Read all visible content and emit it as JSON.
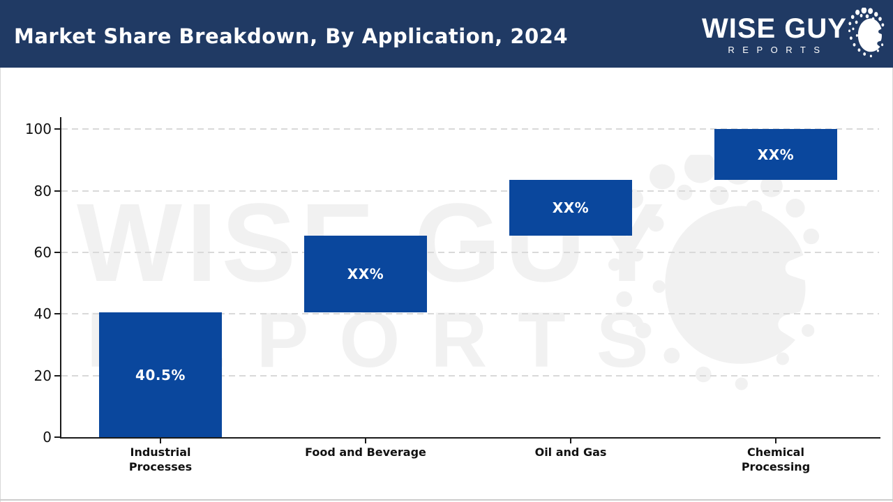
{
  "header": {
    "title": "Market Share Breakdown, By Application, 2024",
    "logo": {
      "line1": "WISE GUY",
      "line2": "REPORTS"
    }
  },
  "watermark": {
    "line1": "WISE GUY",
    "line2": "REPORTS"
  },
  "chart_data": {
    "type": "bar",
    "subtype": "waterfall",
    "title": "Market Share Breakdown, By Application, 2024",
    "categories": [
      "Industrial Processes",
      "Food and Beverage",
      "Oil and Gas",
      "Chemical Processing"
    ],
    "segments": [
      {
        "category": "Industrial Processes",
        "axis_label": "Industrial\nProcesses",
        "start": 0,
        "end": 40.5,
        "label": "40.5%"
      },
      {
        "category": "Food and Beverage",
        "axis_label": "Food and Beverage",
        "start": 40.5,
        "end": 65.5,
        "label": "XX%"
      },
      {
        "category": "Oil and Gas",
        "axis_label": "Oil and Gas",
        "start": 65.5,
        "end": 83.5,
        "label": "XX%"
      },
      {
        "category": "Chemical Processing",
        "axis_label": "Chemical\nProcessing",
        "start": 83.5,
        "end": 100,
        "label": "XX%"
      }
    ],
    "yticks": [
      0,
      20,
      40,
      60,
      80,
      100
    ],
    "ylim": [
      0,
      104
    ],
    "xlabel": "",
    "ylabel": "",
    "grid": "horizontal-dashed",
    "legend": "none"
  },
  "colors": {
    "header_bg": "#203a64",
    "bar": "#0a479d",
    "grid": "#d9d9d9",
    "axis": "#1a1a1a",
    "watermark": "#f1f1f1",
    "bar_label_text": "#ffffff"
  }
}
